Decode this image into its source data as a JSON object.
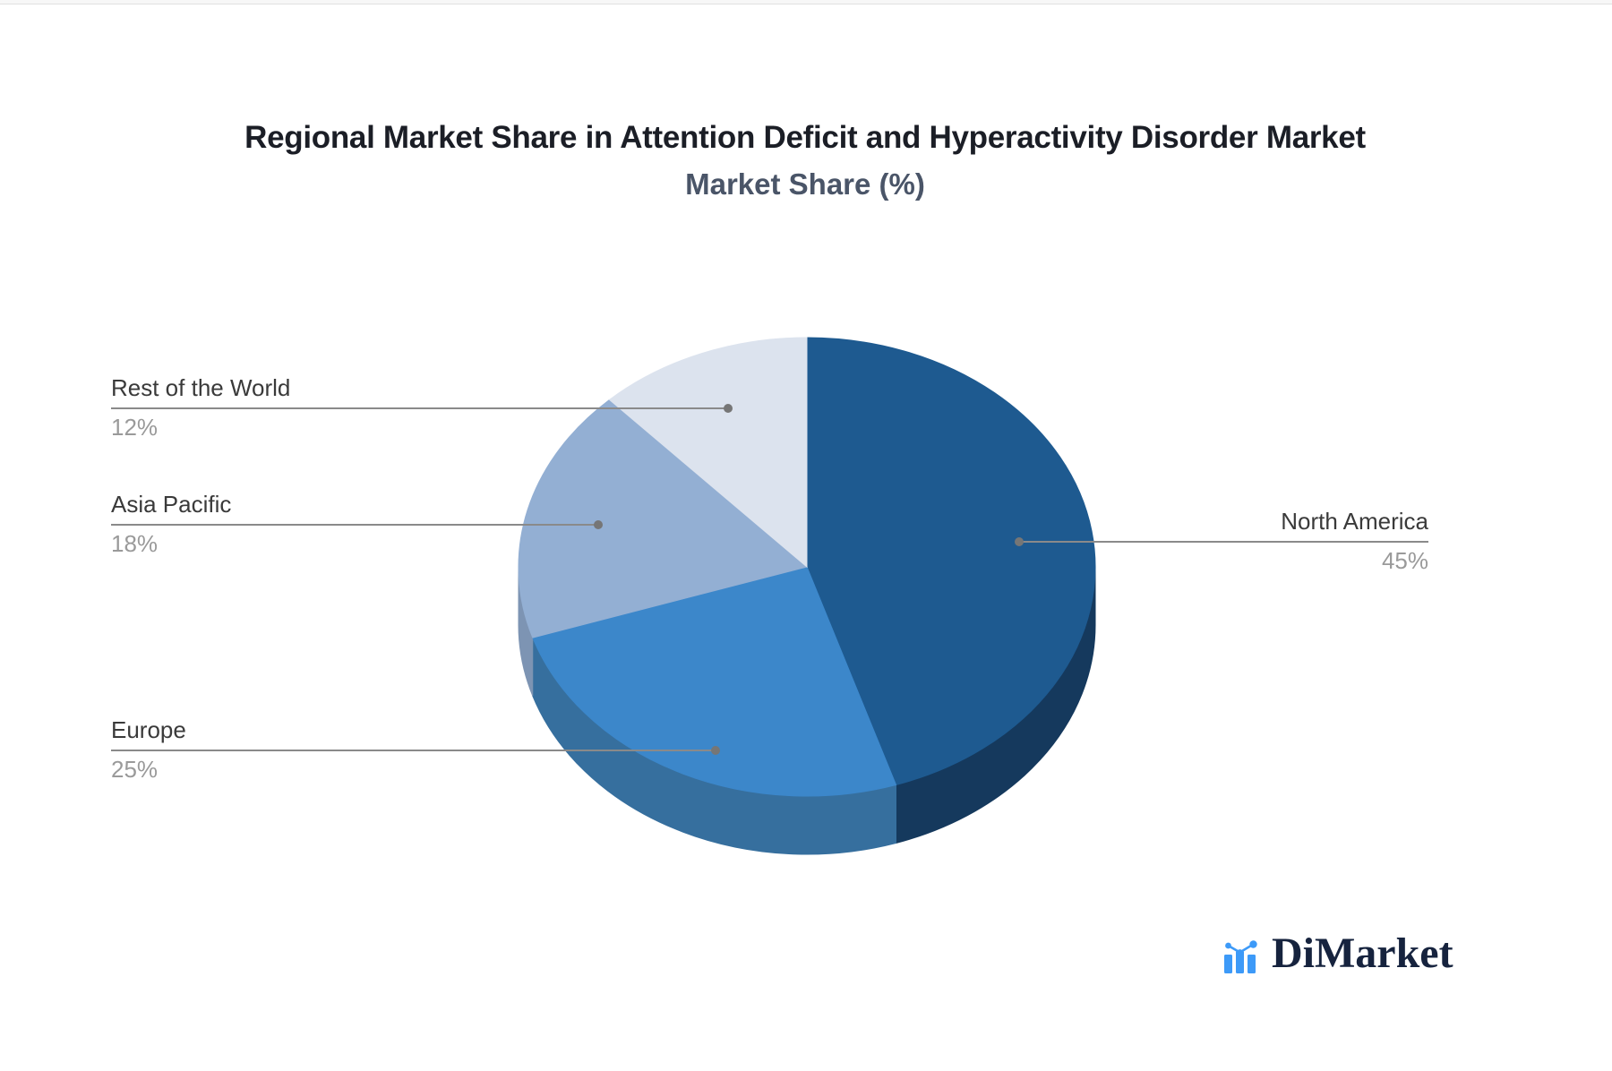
{
  "header": {
    "title": "Regional Market Share in Attention Deficit and Hyperactivity Disorder Market",
    "subtitle": "Market Share (%)"
  },
  "chart_data": {
    "type": "pie",
    "style": "3d-pie",
    "title": "Regional Market Share in Attention Deficit and Hyperactivity Disorder Market",
    "subtitle": "Market Share (%)",
    "unit": "%",
    "start_angle": "12-o-clock",
    "direction": "clockwise",
    "legend": "none, labeled via callout lines",
    "slices": [
      {
        "label": "North America",
        "value": 45,
        "color": "#1E5A90",
        "side_color": "#15395D"
      },
      {
        "label": "Europe",
        "value": 25,
        "color": "#3C87CA",
        "side_color": "#366F9E"
      },
      {
        "label": "Asia Pacific",
        "value": 18,
        "color": "#93AFD3",
        "side_color": "#7D94B3"
      },
      {
        "label": "Rest of the World",
        "value": 12,
        "color": "#DCE3EE",
        "side_color": "#C2CCDB"
      }
    ],
    "callouts": {
      "rest_of_world": {
        "label": "Rest of the World",
        "value_text": "12%"
      },
      "asia_pacific": {
        "label": "Asia Pacific",
        "value_text": "18%"
      },
      "europe": {
        "label": "Europe",
        "value_text": "25%"
      },
      "north_america": {
        "label": "North America",
        "value_text": "45%"
      }
    }
  },
  "branding": {
    "logo_text": "DiMarket",
    "logo_icon": "bar-chart-with-trend-line",
    "logo_icon_color": "#3D9AF8",
    "logo_text_color": "#16233E"
  },
  "styles": {
    "background": "#FFFFFF",
    "title_color": "#1B1E26",
    "subtitle_color": "#4A5568",
    "label_color": "#3A3A3A",
    "value_color": "#9A9A9A",
    "callout_line_color": "#8A8A8A",
    "callout_dot_color": "#767676"
  }
}
